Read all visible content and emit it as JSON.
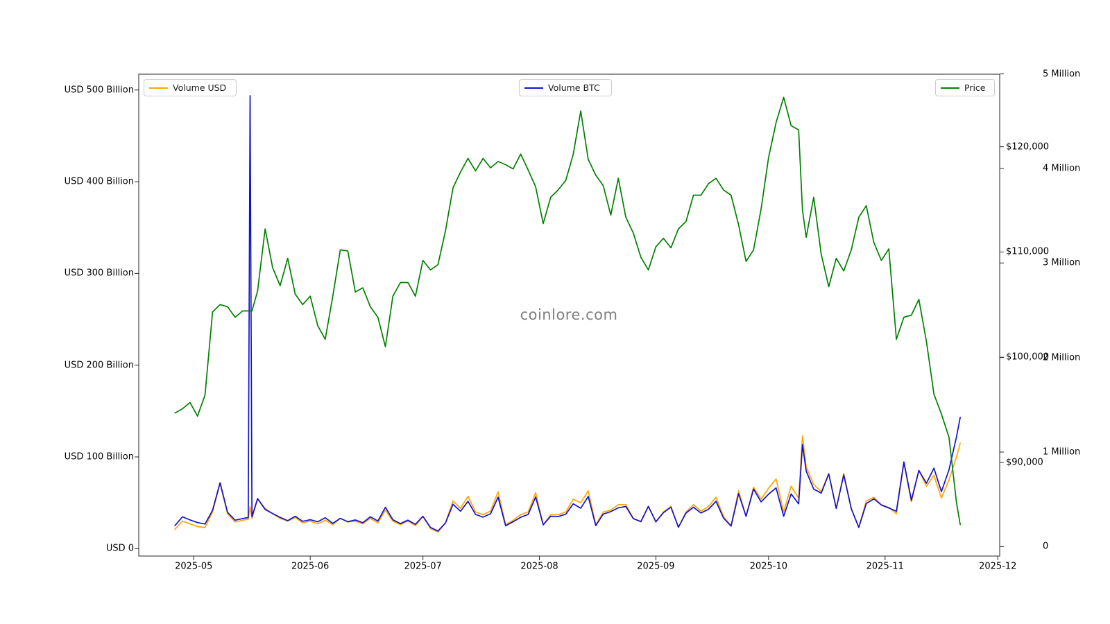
{
  "watermark": "coinlore.com",
  "legends": [
    {
      "label": "Volume USD",
      "color": "#ffa500"
    },
    {
      "label": "Volume BTC",
      "color": "#1111d0"
    },
    {
      "label": "Price",
      "color": "#008000"
    }
  ],
  "axes": {
    "x_ticks": [
      {
        "label": "2025-05",
        "day": 5
      },
      {
        "label": "2025-06",
        "day": 36
      },
      {
        "label": "2025-07",
        "day": 66
      },
      {
        "label": "2025-08",
        "day": 97
      },
      {
        "label": "2025-09",
        "day": 128
      },
      {
        "label": "2025-10",
        "day": 158
      },
      {
        "label": "2025-11",
        "day": 189
      },
      {
        "label": "2025-12",
        "day": 219
      }
    ],
    "left_usd_ticks": [
      {
        "label": "USD 0",
        "value": 0
      },
      {
        "label": "USD 100 Billion",
        "value": 100
      },
      {
        "label": "USD 200 Billion",
        "value": 200
      },
      {
        "label": "USD 300 Billion",
        "value": 300
      },
      {
        "label": "USD 400 Billion",
        "value": 400
      },
      {
        "label": "USD 500 Billion",
        "value": 500
      }
    ],
    "right_price_ticks": [
      {
        "label": "$90,000",
        "value": 90000
      },
      {
        "label": "$100,000",
        "value": 100000
      },
      {
        "label": "$110,000",
        "value": 110000
      },
      {
        "label": "$120,000",
        "value": 120000
      }
    ],
    "right_btc_ticks": [
      {
        "label": "0",
        "value": 0
      },
      {
        "label": "1 Million",
        "value": 1
      },
      {
        "label": "2 Million",
        "value": 2
      },
      {
        "label": "3 Million",
        "value": 3
      },
      {
        "label": "4 Million",
        "value": 4
      },
      {
        "label": "5 Million",
        "value": 5
      }
    ]
  },
  "chart_data": {
    "type": "line",
    "grid": false,
    "day_zero_date": "2025-04-26",
    "x_range_labels": [
      "2025-05",
      "2025-12"
    ],
    "legend_position": {
      "volume_usd": "upper left",
      "volume_btc": "upper center",
      "price": "upper right"
    },
    "left_axis": {
      "unit": "USD Billion",
      "tick_values_billion": [
        0,
        100,
        200,
        300,
        400,
        500
      ]
    },
    "price_axis": {
      "unit": "USD",
      "tick_values": [
        90000,
        100000,
        110000,
        120000
      ]
    },
    "btc_axis": {
      "unit": "BTC Million",
      "tick_values_million": [
        0,
        1,
        2,
        3,
        4,
        5
      ]
    },
    "days": [
      0,
      2,
      4,
      6,
      8,
      10,
      12,
      14,
      16,
      18,
      19.5,
      20,
      20.5,
      22,
      24,
      26,
      28,
      30,
      32,
      34,
      36,
      38,
      40,
      42,
      44,
      46,
      48,
      50,
      52,
      54,
      56,
      58,
      60,
      62,
      64,
      66,
      68,
      70,
      72,
      74,
      76,
      78,
      80,
      82,
      84,
      86,
      88,
      90,
      92,
      94,
      96,
      98,
      100,
      102,
      104,
      106,
      108,
      110,
      112,
      114,
      116,
      118,
      120,
      122,
      124,
      126,
      128,
      130,
      132,
      134,
      136,
      138,
      140,
      142,
      144,
      146,
      148,
      150,
      152,
      154,
      156,
      158,
      160,
      162,
      164,
      166,
      167,
      168,
      170,
      172,
      174,
      176,
      178,
      180,
      182,
      184,
      186,
      188,
      190,
      192,
      194,
      196,
      198,
      200,
      202,
      204,
      206,
      208,
      209
    ],
    "series": [
      {
        "name": "Volume USD",
        "axis": "left",
        "unit": "USD billions",
        "color": "#ffa500",
        "values": [
          21,
          30,
          27,
          24,
          23,
          40,
          71,
          38,
          29,
          31,
          32,
          46,
          33,
          54,
          44,
          38,
          33,
          30,
          34,
          28,
          30,
          27,
          31,
          26,
          33,
          29,
          30,
          27,
          33,
          28,
          42,
          30,
          26,
          30,
          25,
          35,
          22,
          18,
          28,
          52,
          44,
          57,
          40,
          37,
          41,
          62,
          26,
          31,
          37,
          40,
          61,
          26,
          37,
          37,
          40,
          54,
          50,
          63,
          26,
          40,
          42,
          48,
          48,
          33,
          29,
          46,
          29,
          40,
          46,
          23,
          40,
          48,
          41,
          46,
          56,
          35,
          25,
          63,
          35,
          67,
          54,
          66,
          76,
          40,
          68,
          55,
          123,
          89,
          70,
          62,
          82,
          44,
          82,
          44,
          23,
          52,
          56,
          48,
          45,
          38,
          93,
          51,
          85,
          68,
          80,
          55,
          75,
          100,
          115
        ]
      },
      {
        "name": "Volume BTC",
        "axis": "right-outer",
        "unit": "BTC millions",
        "color": "#1111d0",
        "values": [
          0.222,
          0.315,
          0.282,
          0.254,
          0.239,
          0.384,
          0.676,
          0.363,
          0.279,
          0.297,
          0.307,
          4.77,
          0.316,
          0.508,
          0.392,
          0.35,
          0.309,
          0.274,
          0.321,
          0.267,
          0.284,
          0.262,
          0.305,
          0.246,
          0.299,
          0.263,
          0.282,
          0.253,
          0.315,
          0.27,
          0.416,
          0.284,
          0.243,
          0.28,
          0.236,
          0.321,
          0.203,
          0.165,
          0.25,
          0.448,
          0.374,
          0.479,
          0.34,
          0.311,
          0.347,
          0.523,
          0.22,
          0.263,
          0.31,
          0.34,
          0.525,
          0.231,
          0.321,
          0.319,
          0.342,
          0.453,
          0.405,
          0.53,
          0.222,
          0.344,
          0.37,
          0.41,
          0.424,
          0.295,
          0.265,
          0.425,
          0.262,
          0.359,
          0.417,
          0.205,
          0.354,
          0.416,
          0.355,
          0.395,
          0.479,
          0.302,
          0.217,
          0.56,
          0.321,
          0.608,
          0.473,
          0.555,
          0.621,
          0.321,
          0.557,
          0.452,
          1.079,
          0.799,
          0.608,
          0.565,
          0.769,
          0.402,
          0.758,
          0.399,
          0.203,
          0.455,
          0.505,
          0.44,
          0.408,
          0.374,
          0.896,
          0.49,
          0.806,
          0.67,
          0.829,
          0.581,
          0.812,
          1.16,
          1.367
        ]
      },
      {
        "name": "Price",
        "axis": "right",
        "unit": "USD",
        "color": "#008000",
        "values": [
          94700,
          95100,
          95700,
          94400,
          96400,
          104300,
          105000,
          104800,
          103800,
          104400,
          104400,
          104400,
          104400,
          106300,
          112200,
          108500,
          106800,
          109400,
          106000,
          105000,
          105800,
          103000,
          101700,
          105800,
          110200,
          110100,
          106200,
          106600,
          104800,
          103800,
          101000,
          105800,
          107100,
          107100,
          105800,
          109200,
          108300,
          108800,
          112000,
          116100,
          117600,
          118900,
          117700,
          118900,
          118000,
          118600,
          118300,
          117900,
          119300,
          117800,
          116200,
          112700,
          115200,
          115900,
          116800,
          119300,
          123400,
          118800,
          117300,
          116300,
          113500,
          117000,
          113300,
          111800,
          109500,
          108300,
          110500,
          111300,
          110400,
          112200,
          112900,
          115400,
          115400,
          116500,
          117000,
          115900,
          115400,
          112600,
          109100,
          110200,
          114100,
          119000,
          122300,
          124700,
          122000,
          121600,
          114000,
          111400,
          115200,
          109800,
          106700,
          109400,
          108200,
          110200,
          113300,
          114400,
          110900,
          109200,
          110300,
          101700,
          103800,
          104000,
          105500,
          101500,
          96500,
          94600,
          92400,
          86200,
          84100
        ]
      }
    ]
  }
}
